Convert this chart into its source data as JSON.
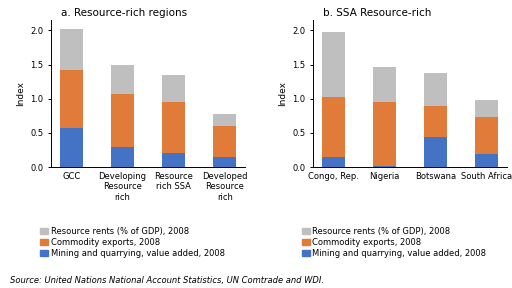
{
  "chart_a": {
    "title": "a. Resource-rich regions",
    "categories": [
      "GCC",
      "Developing\nResource\nrich",
      "Resource\nrich SSA",
      "Developed\nResource\nrich"
    ],
    "mining": [
      0.57,
      0.3,
      0.2,
      0.15
    ],
    "commodity": [
      0.85,
      0.77,
      0.75,
      0.45
    ],
    "resource_rents": [
      0.6,
      0.43,
      0.4,
      0.17
    ],
    "ylim": [
      0,
      2.15
    ],
    "yticks": [
      0,
      0.5,
      1.0,
      1.5,
      2.0
    ],
    "ylabel": "Index"
  },
  "chart_b": {
    "title": "b. SSA Resource-rich",
    "categories": [
      "Congo, Rep.",
      "Nigeria",
      "Botswana",
      "South Africa"
    ],
    "mining": [
      0.15,
      0.02,
      0.44,
      0.19
    ],
    "commodity": [
      0.87,
      0.93,
      0.45,
      0.54
    ],
    "resource_rents": [
      0.96,
      0.52,
      0.49,
      0.25
    ],
    "ylim": [
      0,
      2.15
    ],
    "yticks": [
      0,
      0.5,
      1.0,
      1.5,
      2.0
    ],
    "ylabel": "Index"
  },
  "colors": {
    "resource_rents": "#c0bfbf",
    "commodity": "#e07b39",
    "mining": "#4472c4"
  },
  "legend_labels": [
    "Resource rents (% of GDP), 2008",
    "Commodity exports, 2008",
    "Mining and quarrying, value added, 2008"
  ],
  "source_text": "Source: United Nations National Account Statistics, UN Comtrade and WDI.",
  "bg_color": "#ffffff",
  "title_fontsize": 7.5,
  "label_fontsize": 6.5,
  "tick_fontsize": 6,
  "legend_fontsize": 6,
  "source_fontsize": 6
}
